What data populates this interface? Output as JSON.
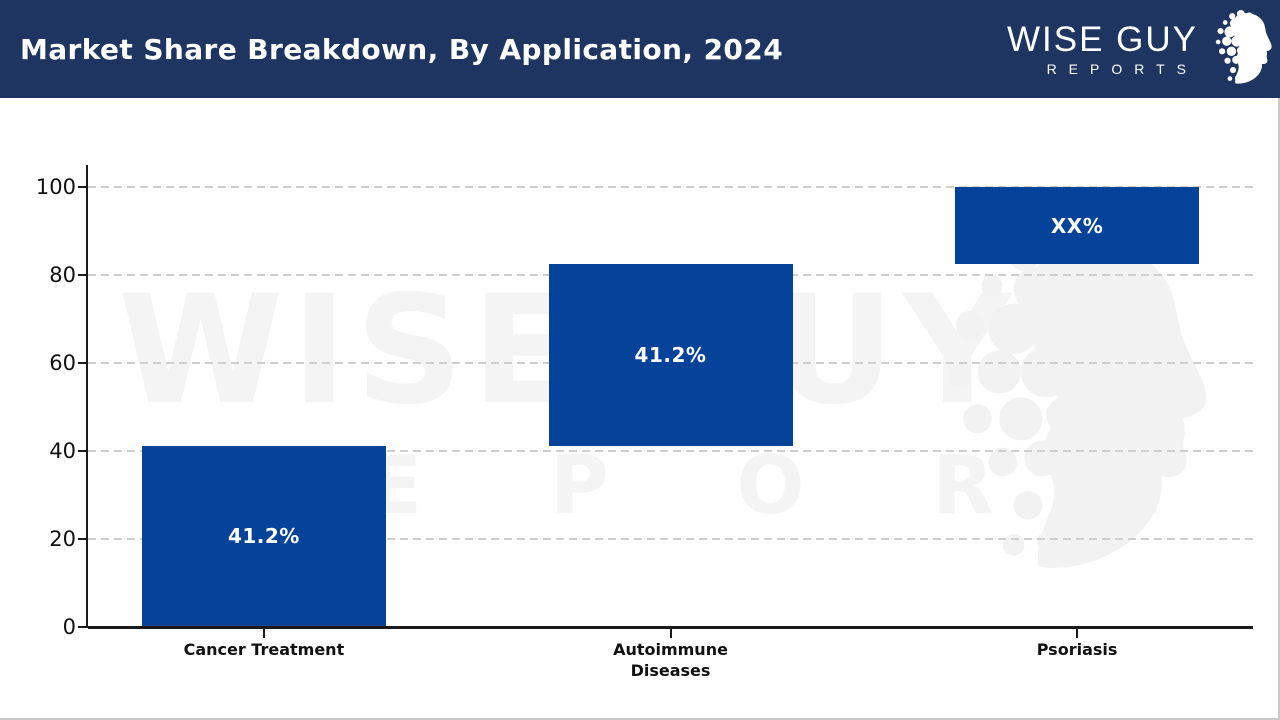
{
  "header": {
    "title": "Market Share Breakdown, By Application, 2024",
    "logo": {
      "line1": "WISE GUY",
      "line2": "REPORTS"
    }
  },
  "watermark": {
    "line1": "WISE GUY",
    "line2": "R E P O R T S"
  },
  "chart_data": {
    "type": "waterfall",
    "title": "Market Share Breakdown, By Application, 2024",
    "categories": [
      "Cancer Treatment",
      "Autoimmune\nDiseases",
      "Psoriasis"
    ],
    "segments": [
      {
        "category": "Cancer Treatment",
        "start": 0,
        "end": 41.2,
        "label": "41.2%"
      },
      {
        "category": "Autoimmune\nDiseases",
        "start": 41.2,
        "end": 82.4,
        "label": "41.2%"
      },
      {
        "category": "Psoriasis",
        "start": 82.4,
        "end": 100,
        "label": "XX%"
      }
    ],
    "y_ticks": [
      0,
      20,
      40,
      60,
      80,
      100
    ],
    "ylim": [
      0,
      105
    ],
    "grid": "horizontal-dashed",
    "legend": "none",
    "bar_color": "#05439B",
    "bar_label_color": "#ffffff",
    "grid_color": "#cfcfcf",
    "axis_color": "#1a1a1a",
    "header_color": "#1F3561",
    "watermark_color": "#f4f4f4"
  }
}
